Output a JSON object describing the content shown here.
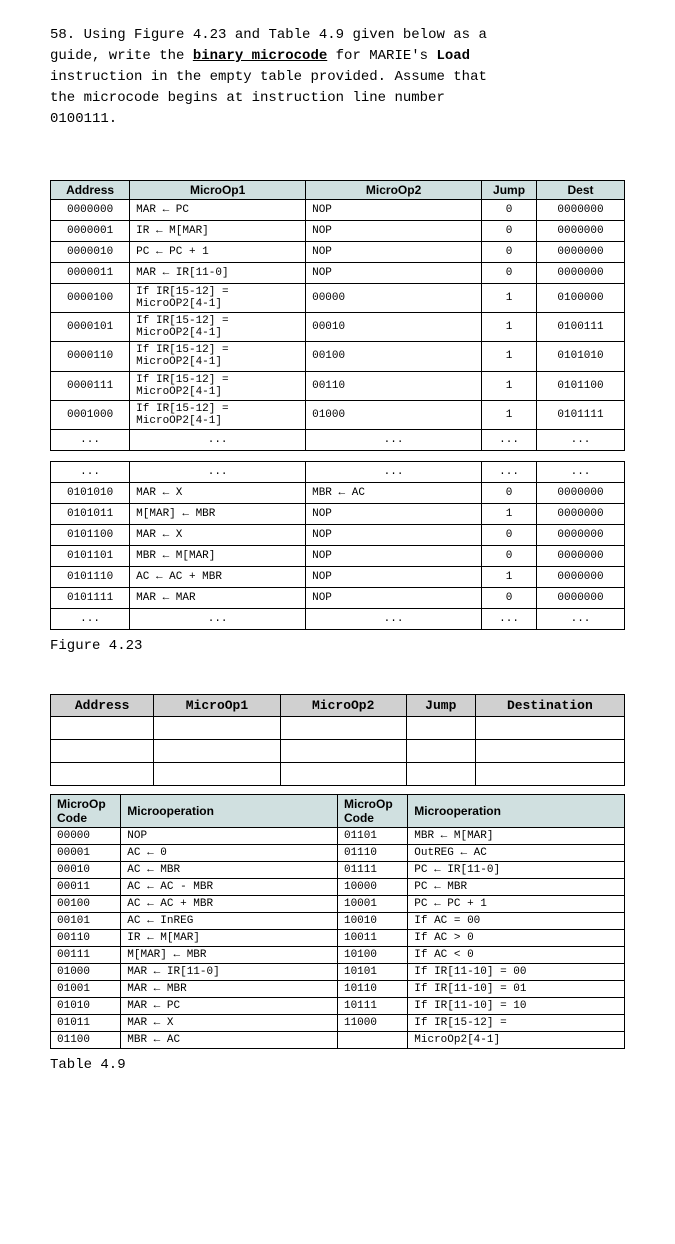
{
  "question": {
    "num": "58.",
    "line1_a": "Using Figure 4.23 and Table 4.9 given below as a",
    "line2_a": "guide, write the ",
    "line2_b": "binary microcode",
    "line2_c": " for MARIE's ",
    "line2_d": "Load",
    "line3": "instruction in the empty table provided. Assume that",
    "line4": "the microcode begins at instruction line number",
    "line5": "0100111."
  },
  "fig": {
    "headers": [
      "Address",
      "MicroOp1",
      "MicroOp2",
      "Jump",
      "Dest"
    ],
    "rows_top": [
      {
        "a": "0000000",
        "o1": "MAR ← PC",
        "o2": "NOP",
        "j": "0",
        "d": "0000000"
      },
      {
        "a": "0000001",
        "o1": "IR ← M[MAR]",
        "o2": "NOP",
        "j": "0",
        "d": "0000000"
      },
      {
        "a": "0000010",
        "o1": "PC ← PC + 1",
        "o2": "NOP",
        "j": "0",
        "d": "0000000"
      },
      {
        "a": "0000011",
        "o1": "MAR ← IR[11-0]",
        "o2": "NOP",
        "j": "0",
        "d": "0000000"
      }
    ],
    "rows_if": [
      {
        "a": "0000100",
        "o1a": "If IR[15-12] =",
        "o1b": "MicroOP2[4-1]",
        "o2": "00000",
        "j": "1",
        "d": "0100000"
      },
      {
        "a": "0000101",
        "o1a": "If IR[15-12] =",
        "o1b": "MicroOP2[4-1]",
        "o2": "00010",
        "j": "1",
        "d": "0100111"
      },
      {
        "a": "0000110",
        "o1a": "If IR[15-12] =",
        "o1b": "MicroOP2[4-1]",
        "o2": "00100",
        "j": "1",
        "d": "0101010"
      },
      {
        "a": "0000111",
        "o1a": "If IR[15-12] =",
        "o1b": "MicroOP2[4-1]",
        "o2": "00110",
        "j": "1",
        "d": "0101100"
      },
      {
        "a": "0001000",
        "o1a": "If IR[15-12] =",
        "o1b": "MicroOP2[4-1]",
        "o2": "01000",
        "j": "1",
        "d": "0101111"
      }
    ],
    "rows_bot": [
      {
        "a": "0101010",
        "o1": "MAR ← X",
        "o2": "MBR ← AC",
        "j": "0",
        "d": "0000000"
      },
      {
        "a": "0101011",
        "o1": "M[MAR] ← MBR",
        "o2": "NOP",
        "j": "1",
        "d": "0000000"
      },
      {
        "a": "0101100",
        "o1": "MAR ← X",
        "o2": "NOP",
        "j": "0",
        "d": "0000000"
      },
      {
        "a": "0101101",
        "o1": "MBR ← M[MAR]",
        "o2": "NOP",
        "j": "0",
        "d": "0000000"
      },
      {
        "a": "0101110",
        "o1": "AC ← AC + MBR",
        "o2": "NOP",
        "j": "1",
        "d": "0000000"
      },
      {
        "a": "0101111",
        "o1": "MAR ← MAR",
        "o2": "NOP",
        "j": "0",
        "d": "0000000"
      }
    ],
    "caption": "Figure 4.23"
  },
  "empty": {
    "headers": [
      "Address",
      "MicroOp1",
      "MicroOp2",
      "Jump",
      "Destination"
    ]
  },
  "optable": {
    "headers": [
      "MicroOp Code",
      "Microoperation",
      "MicroOp Code",
      "Microoperation"
    ],
    "rows": [
      [
        "00000",
        "NOP",
        "01101",
        "MBR ← M[MAR]"
      ],
      [
        "00001",
        "AC ← 0",
        "01110",
        "OutREG ← AC"
      ],
      [
        "00010",
        "AC ← MBR",
        "01111",
        "PC ← IR[11-0]"
      ],
      [
        "00011",
        "AC ← AC - MBR",
        "10000",
        "PC ← MBR"
      ],
      [
        "00100",
        "AC ← AC + MBR",
        "10001",
        "PC ← PC + 1"
      ],
      [
        "00101",
        "AC ← InREG",
        "10010",
        "If AC = 00"
      ],
      [
        "00110",
        "IR ← M[MAR]",
        "10011",
        "If AC > 0"
      ],
      [
        "00111",
        "M[MAR] ← MBR",
        "10100",
        "If AC < 0"
      ],
      [
        "01000",
        "MAR ← IR[11-0]",
        "10101",
        "If IR[11-10] = 00"
      ],
      [
        "01001",
        "MAR ← MBR",
        "10110",
        "If IR[11-10] = 01"
      ],
      [
        "01010",
        "MAR ← PC",
        "10111",
        "If IR[11-10] = 10"
      ],
      [
        "01011",
        "MAR ← X",
        "11000",
        "If IR[15-12] ="
      ],
      [
        "01100",
        "MBR ← AC",
        "",
        "    MicroOp2[4-1]"
      ]
    ],
    "caption": "Table 4.9"
  },
  "ellipsis": "..."
}
